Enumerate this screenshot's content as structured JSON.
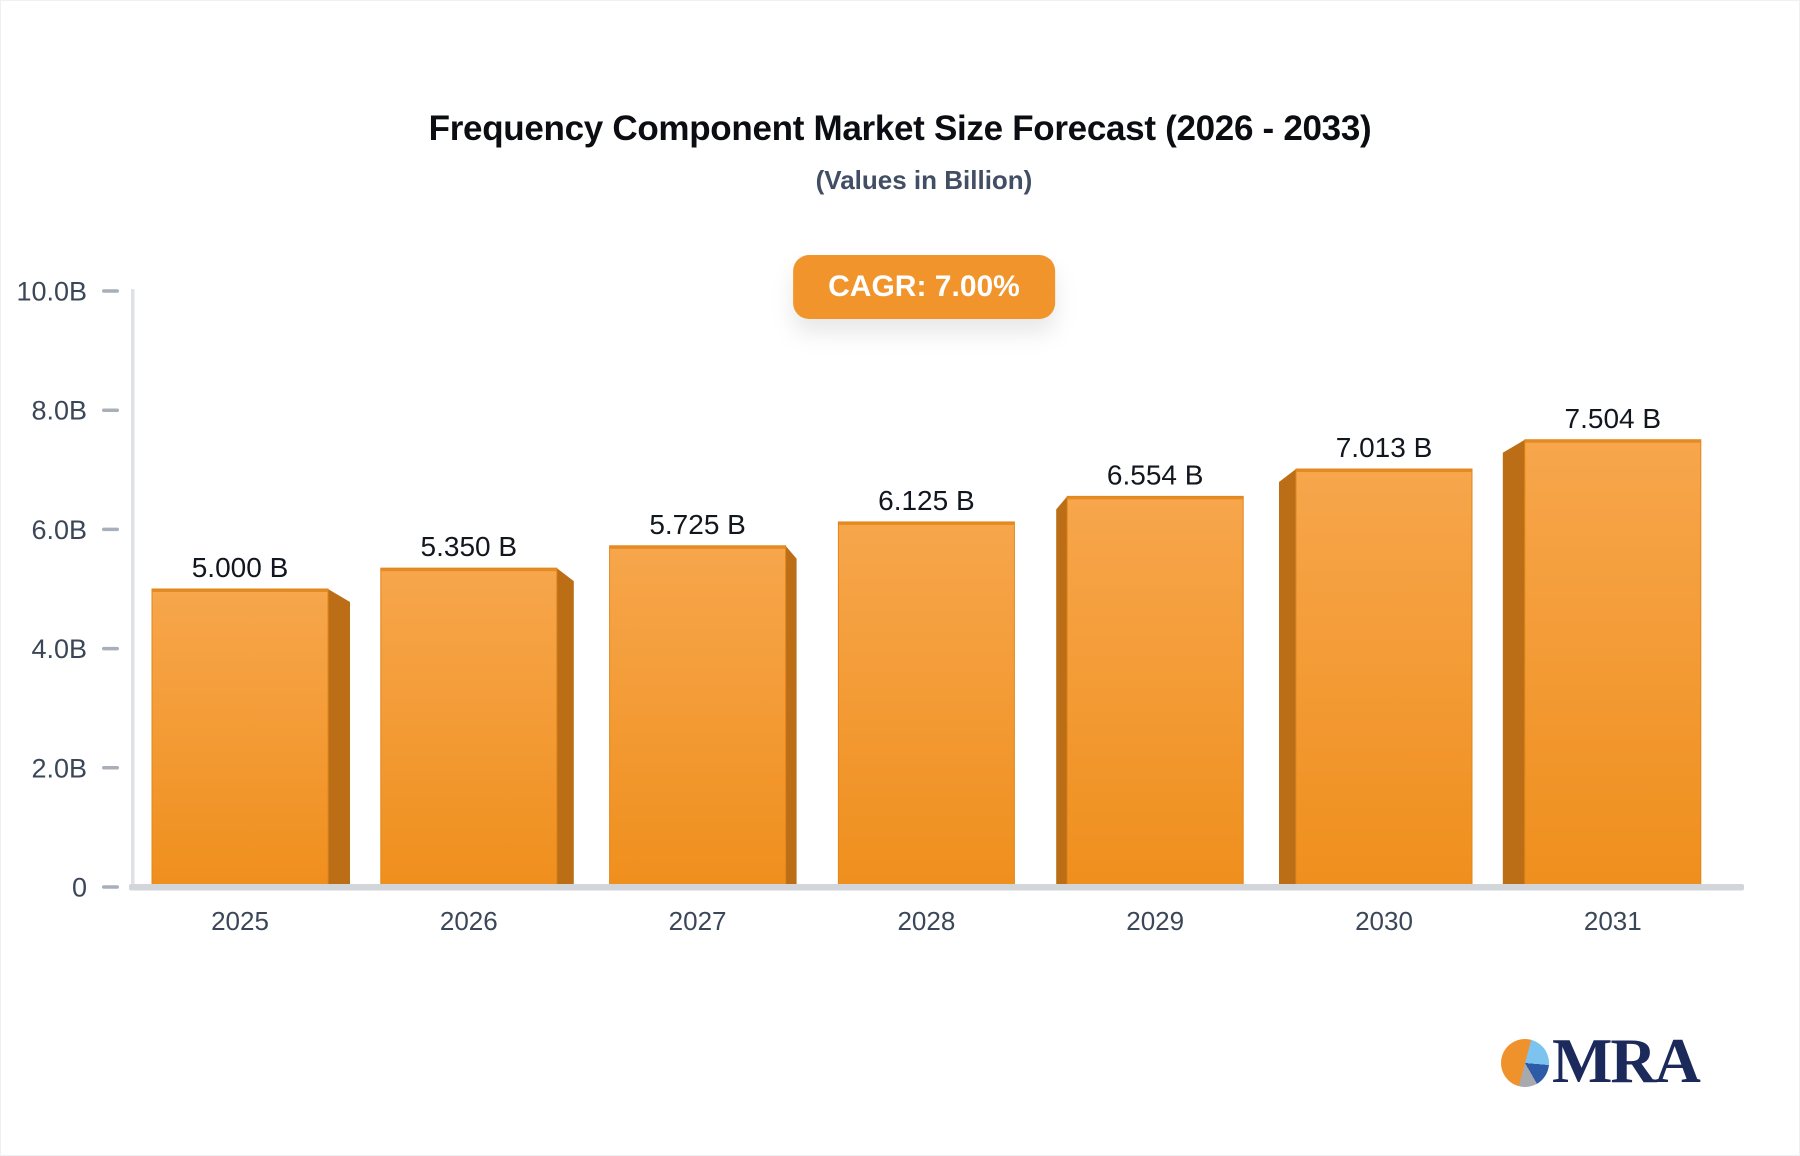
{
  "chart_data": {
    "type": "bar",
    "title": "Frequency Component Market Size Forecast (2026 - 2033)",
    "subtitle": "(Values in Billion)",
    "badge": "CAGR: 7.00%",
    "categories": [
      "2025",
      "2026",
      "2027",
      "2028",
      "2029",
      "2030",
      "2031"
    ],
    "values": [
      5.0,
      5.35,
      5.725,
      6.125,
      6.554,
      7.013,
      7.504
    ],
    "value_labels": [
      "5.000 B",
      "5.350 B",
      "5.725 B",
      "6.125 B",
      "6.554 B",
      "7.013 B",
      "7.504 B"
    ],
    "unit": "Billion",
    "ylim": [
      0,
      10
    ],
    "yticks": [
      {
        "value": 10,
        "label": "10.0B"
      },
      {
        "value": 8,
        "label": "8.0B"
      },
      {
        "value": 6,
        "label": "6.0B"
      },
      {
        "value": 4,
        "label": "4.0B"
      },
      {
        "value": 2,
        "label": "2.0B"
      },
      {
        "value": 0,
        "label": "0"
      }
    ],
    "grid": false,
    "legend": false,
    "bar_style": "3d-perspective-center",
    "colors": {
      "bar_top": "#f7a64c",
      "bar_bottom": "#ef8f1d",
      "bar_side": "#bc6e17",
      "bar_edge": "#e0861c",
      "axis_line": "#dee1e6",
      "baseline": "#d2d6db",
      "tick": "#a8afb8",
      "axis_text": "#3b4758",
      "value_text": "#12161f",
      "badge_bg": "#f1942b",
      "badge_text": "#ffffff",
      "title_text": "#0b0d12",
      "subtitle_text": "#414e63"
    }
  },
  "logo": {
    "text": "MRA",
    "colors": {
      "orange": "#f0922b",
      "light_blue": "#7cc4ef",
      "blue": "#2d5ba8",
      "gray": "#a7a9ac",
      "text": "#1b2a5a"
    }
  }
}
